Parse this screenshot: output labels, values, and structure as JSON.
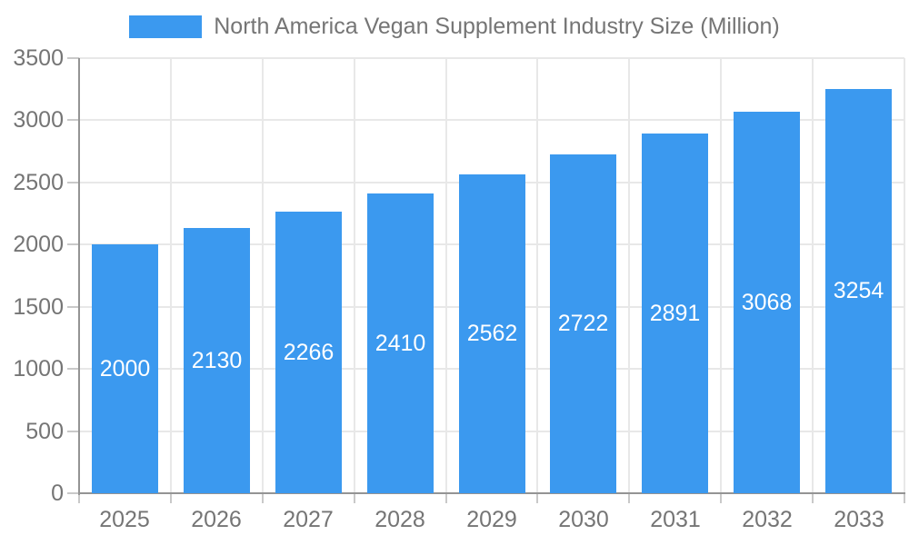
{
  "chart_data": {
    "type": "bar",
    "legend_label": "North America Vegan Supplement Industry Size (Million)",
    "legend_position": "top",
    "categories": [
      "2025",
      "2026",
      "2027",
      "2028",
      "2029",
      "2030",
      "2031",
      "2032",
      "2033"
    ],
    "values": [
      2000,
      2130,
      2266,
      2410,
      2562,
      2722,
      2891,
      3068,
      3254
    ],
    "y_tick_labels": [
      "0",
      "500",
      "1000",
      "1500",
      "2000",
      "2500",
      "3000",
      "3500"
    ],
    "ylim": [
      0,
      3500
    ],
    "ytick_step": 500,
    "grid": true,
    "bar_value_labels": "centered-white",
    "colors": {
      "bar": "#3B99EF",
      "bar_label": "#FFFFFF",
      "axis_text": "#757575",
      "grid_line": "#E8E8E8",
      "axis_line": "#949494",
      "tick_mark": "#C9C9C9",
      "background": "#FFFFFF"
    }
  }
}
